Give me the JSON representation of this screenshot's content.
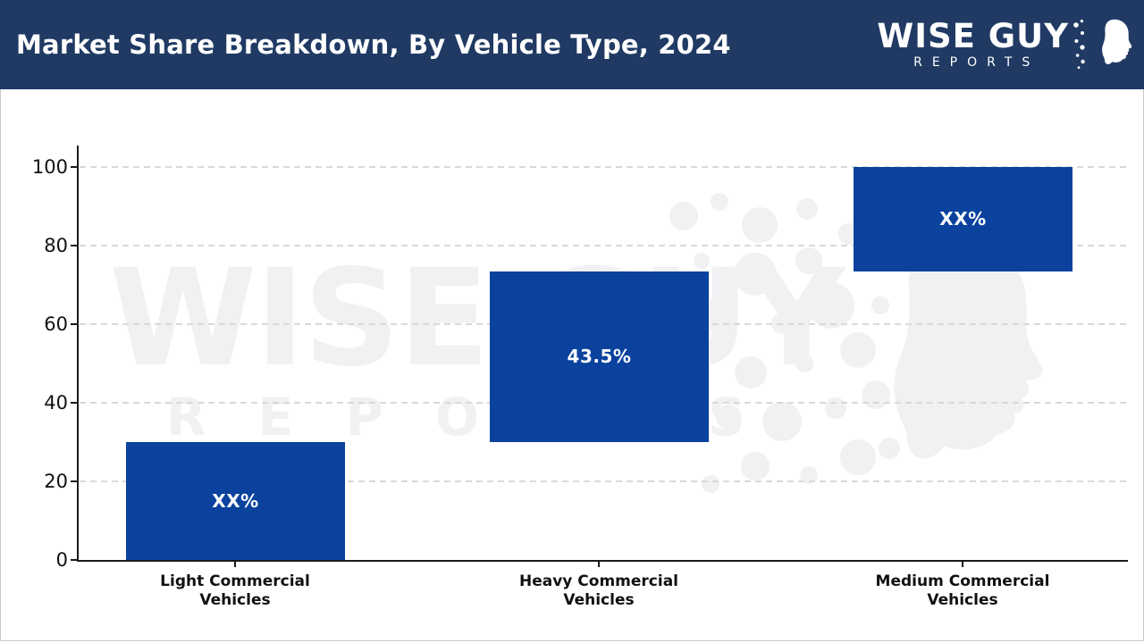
{
  "header": {
    "title": "Market Share Breakdown, By Vehicle Type, 2024",
    "logo": {
      "line1": "WISE GUY",
      "line2": "REPORTS"
    },
    "bg_color": "#203a64"
  },
  "chart_data": {
    "type": "bar",
    "subtype": "stacked_percentage_waterfall",
    "title": "Market Share Breakdown, By Vehicle Type, 2024",
    "categories": [
      "Light Commercial Vehicles",
      "Heavy Commercial Vehicles",
      "Medium Commercial Vehicles"
    ],
    "segments": [
      {
        "category": "Light Commercial Vehicles",
        "start": 0,
        "end": 30,
        "label": "XX%"
      },
      {
        "category": "Heavy Commercial Vehicles",
        "start": 30,
        "end": 73.5,
        "label": "43.5%"
      },
      {
        "category": "Medium Commercial Vehicles",
        "start": 73.5,
        "end": 100,
        "label": "XX%"
      }
    ],
    "yticks": [
      "0",
      "20",
      "40",
      "60",
      "80",
      "100"
    ],
    "ytick_values": [
      0,
      20,
      40,
      60,
      80,
      100
    ],
    "ylim": [
      0,
      105
    ],
    "grid": "horizontal dashed",
    "grid_color": "#d9d9d9",
    "bar_color": "#0a429e",
    "bar_label_color": "#ffffff",
    "legend": "none"
  },
  "watermark": {
    "line1": "WISE GUY",
    "line2": "REPORTS"
  }
}
